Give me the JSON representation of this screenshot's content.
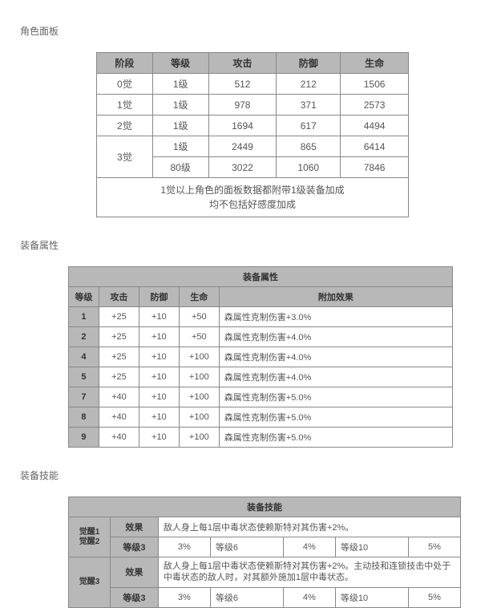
{
  "sections": {
    "panel_title": "角色面板",
    "equip_title": "装备属性",
    "skill_title": "装备技能"
  },
  "panel_table": {
    "headers": [
      "阶段",
      "等级",
      "攻击",
      "防御",
      "生命"
    ],
    "rows": [
      {
        "stage": "0觉",
        "level": "1级",
        "atk": "512",
        "def": "212",
        "hp": "1506",
        "rowspan": 1
      },
      {
        "stage": "1觉",
        "level": "1级",
        "atk": "978",
        "def": "371",
        "hp": "2573",
        "rowspan": 1
      },
      {
        "stage": "2觉",
        "level": "1级",
        "atk": "1694",
        "def": "617",
        "hp": "4494",
        "rowspan": 1
      },
      {
        "stage": "3觉",
        "level": "1级",
        "atk": "2449",
        "def": "865",
        "hp": "6414",
        "rowspan": 2
      },
      {
        "stage": "",
        "level": "80级",
        "atk": "3022",
        "def": "1060",
        "hp": "7846",
        "rowspan": 0
      }
    ],
    "note_l1": "1觉以上角色的面板数据都附带1级装备加成",
    "note_l2": "均不包括好感度加成"
  },
  "equip_table": {
    "title": "装备属性",
    "headers": [
      "等级",
      "攻击",
      "防御",
      "生命",
      "附加效果"
    ],
    "rows": [
      [
        "1",
        "+25",
        "+10",
        "+50",
        "森属性克制伤害+3.0%"
      ],
      [
        "2",
        "+25",
        "+10",
        "+50",
        "森属性克制伤害+4.0%"
      ],
      [
        "4",
        "+25",
        "+10",
        "+100",
        "森属性克制伤害+4.0%"
      ],
      [
        "5",
        "+25",
        "+10",
        "+100",
        "森属性克制伤害+4.0%"
      ],
      [
        "7",
        "+40",
        "+10",
        "+100",
        "森属性克制伤害+5.0%"
      ],
      [
        "8",
        "+40",
        "+10",
        "+100",
        "森属性克制伤害+5.0%"
      ],
      [
        "9",
        "+40",
        "+10",
        "+100",
        "森属性克制伤害+5.0%"
      ]
    ]
  },
  "skill_table": {
    "title": "装备技能",
    "labels": {
      "effect": "效果",
      "lvl3": "等级3",
      "lvl6": "等级6",
      "lvl10": "等级10"
    },
    "group1": {
      "row_label": "觉醒1\n觉醒2",
      "desc": "敌人身上每1层中毒状态使赖斯特对其伤害+2%。",
      "vals": {
        "v3": "3%",
        "v6": "4%",
        "v10": "5%"
      }
    },
    "group2": {
      "row_label": "觉醒3",
      "desc": "敌人身上每1层中毒状态使赖斯特对其伤害+2%。主动技和连锁技击中处于中毒状态的敌人时，对其额外施加1层中毒状态。",
      "vals": {
        "v3": "3%",
        "v6": "4%",
        "v10": "5%"
      }
    }
  },
  "style": {
    "header_bg": "#b8b8b8",
    "border": "#888888",
    "text": "#555555",
    "bg": "#ffffff",
    "font_size_body": 12,
    "font_size_small": 11
  }
}
